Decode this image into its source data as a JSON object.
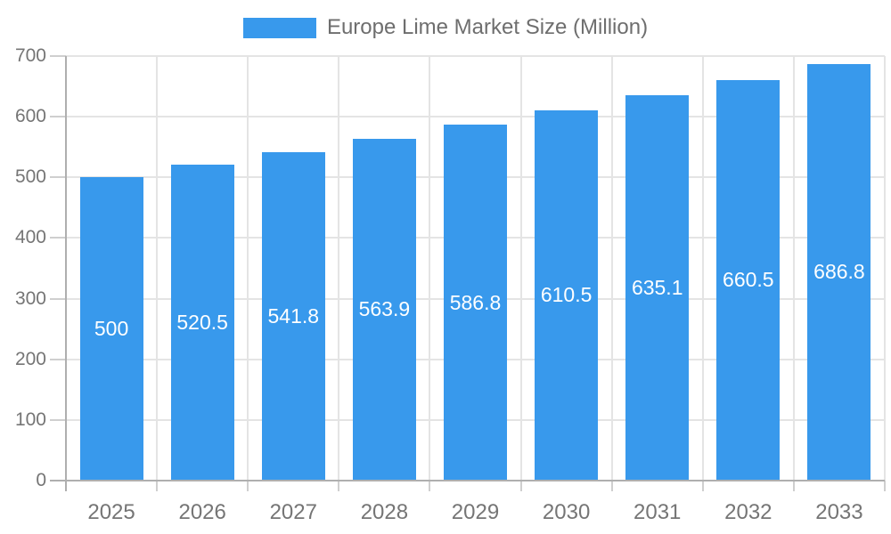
{
  "chart_data": {
    "type": "bar",
    "title": "Europe Lime Market Size (Million)",
    "legend_entries": [
      "Europe Lime Market Size (Million)"
    ],
    "legend_position": "top",
    "categories": [
      "2025",
      "2026",
      "2027",
      "2028",
      "2029",
      "2030",
      "2031",
      "2032",
      "2033"
    ],
    "values": [
      500,
      520.5,
      541.8,
      563.9,
      586.8,
      610.5,
      635.1,
      660.5,
      686.8
    ],
    "value_labels": [
      "500",
      "520.5",
      "541.8",
      "563.9",
      "586.8",
      "610.5",
      "635.1",
      "660.5",
      "686.8"
    ],
    "xlabel": "",
    "ylabel": "",
    "ylim": [
      0,
      700
    ],
    "yticks": [
      0,
      100,
      200,
      300,
      400,
      500,
      600,
      700
    ],
    "grid": true,
    "colors": {
      "bar": "#3899EC",
      "bar_label": "#FFFFFF",
      "grid_line": "#E4E4E4",
      "axis_line": "#AFAFAF",
      "tick_line": "#CFCFCF",
      "axis_text": "#757575",
      "legend_text": "#6E6E6E"
    }
  }
}
